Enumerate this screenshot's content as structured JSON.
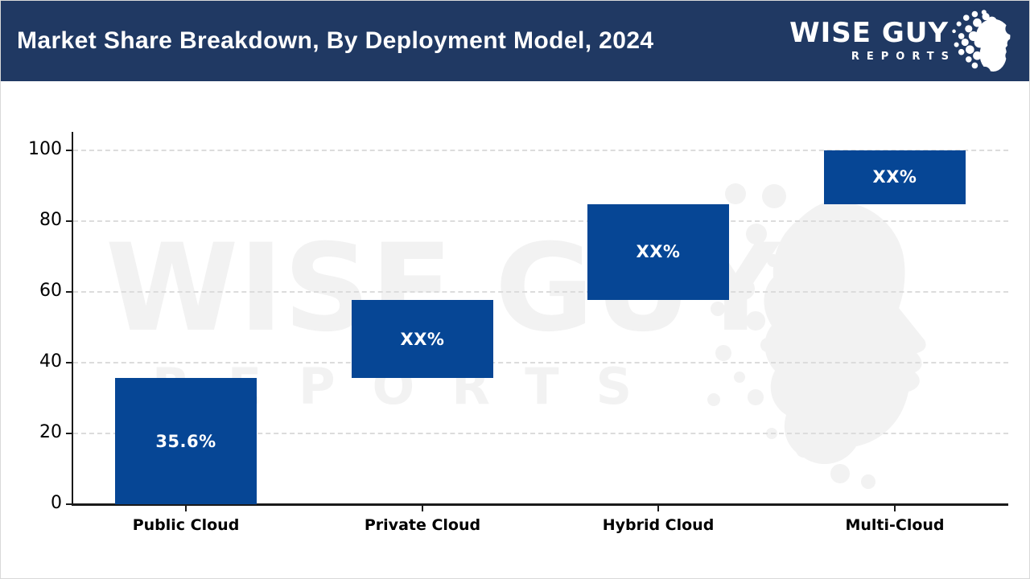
{
  "header": {
    "title": "Market Share Breakdown, By Deployment Model, 2024",
    "logo": {
      "line1": "WISE GUY",
      "line2": "REPORTS"
    }
  },
  "watermark": {
    "line1": "WISE GUY",
    "line2": "REPORTS"
  },
  "chart_data": {
    "type": "bar",
    "subtype": "floating-waterfall-segments",
    "title": "Market Share Breakdown, By Deployment Model, 2024",
    "categories": [
      "Public Cloud",
      "Private Cloud",
      "Hybrid Cloud",
      "Multi-Cloud"
    ],
    "bars": [
      {
        "category": "Public Cloud",
        "start": 0,
        "end": 35.6,
        "label": "35.6%"
      },
      {
        "category": "Private Cloud",
        "start": 35.6,
        "end": 57.8,
        "label": "XX%"
      },
      {
        "category": "Hybrid Cloud",
        "start": 57.8,
        "end": 84.8,
        "label": "XX%"
      },
      {
        "category": "Multi-Cloud",
        "start": 84.8,
        "end": 100,
        "label": "XX%"
      }
    ],
    "yticks": [
      0,
      20,
      40,
      60,
      80,
      100
    ],
    "ylim": [
      0,
      105
    ],
    "xlabel": "",
    "ylabel": "",
    "grid": "horizontal-dashed",
    "legend_position": "none"
  },
  "colors": {
    "header_bg": "#203963",
    "bar": "#064695",
    "bar_label": "#ffffff",
    "axis": "#1a1a1a",
    "grid": "#dcdcdc",
    "tick_text": "#000000",
    "watermark": "#f2f2f2",
    "logo_text": "#ffffff"
  }
}
